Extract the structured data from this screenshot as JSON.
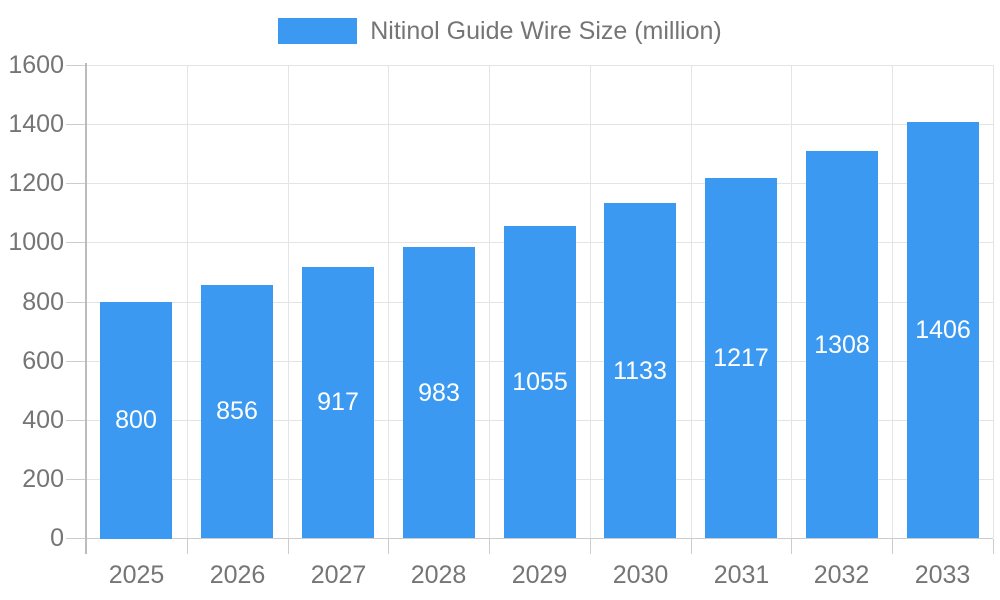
{
  "legend": {
    "label": "Nitinol Guide Wire Size (million)"
  },
  "colors": {
    "bar": "#3B99F1",
    "grid": "#E4E4E4",
    "y_axis_line": "#BBBBBB",
    "x_axis_line": "#CCCCCC",
    "tick": "#CCCCCC",
    "axis_label": "#757575",
    "legend_label": "#757575",
    "bar_label": "#FFFFFF",
    "background": "#FFFFFF"
  },
  "chart_data": {
    "type": "bar",
    "title": "Nitinol Guide Wire Size (million)",
    "series_name": "Nitinol Guide Wire Size (million)",
    "categories": [
      "2025",
      "2026",
      "2027",
      "2028",
      "2029",
      "2030",
      "2031",
      "2032",
      "2033"
    ],
    "values": [
      800,
      856,
      917,
      983,
      1055,
      1133,
      1217,
      1308,
      1406
    ],
    "xlabel": "",
    "ylabel": "",
    "ylim": [
      0,
      1600
    ],
    "ytick_step": 200,
    "ytick_labels": [
      "0",
      "200",
      "400",
      "600",
      "800",
      "1000",
      "1200",
      "1400",
      "1600"
    ],
    "grid": true,
    "legend_position": "top-center",
    "value_labels": "inside-center"
  }
}
